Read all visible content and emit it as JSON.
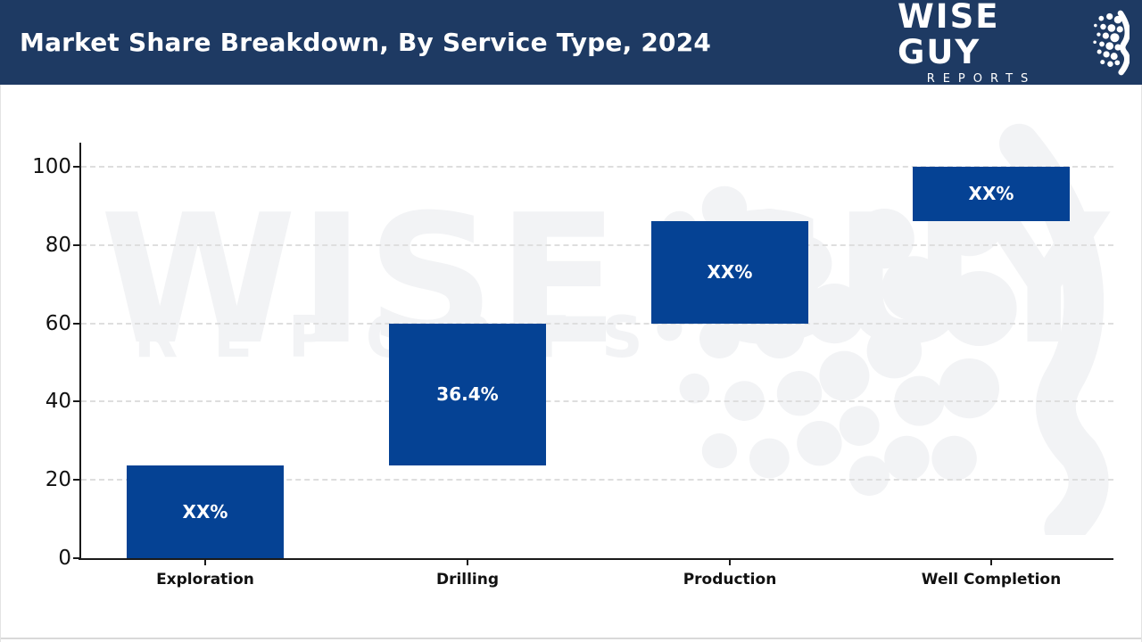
{
  "header": {
    "title": "Market Share Breakdown, By Service Type, 2024",
    "logo": {
      "line1": "WISE GUY",
      "line2": "REPORTS"
    }
  },
  "watermark": {
    "line1": "WISE GUY",
    "line2": "REPORTS"
  },
  "colors": {
    "header_bg": "#1e3a63",
    "bar": "#054294",
    "grid": "#dedede",
    "axis": "#1a1a1a",
    "watermark": "#f2f3f5",
    "title_text": "#ffffff"
  },
  "chart_data": {
    "type": "bar",
    "variant": "waterfall",
    "title": "Market Share Breakdown, By Service Type, 2024",
    "categories": [
      "Exploration",
      "Drilling",
      "Production",
      "Well Completion"
    ],
    "segments": [
      {
        "category": "Exploration",
        "start": 0,
        "end": 23.6,
        "label": "XX%"
      },
      {
        "category": "Drilling",
        "start": 23.6,
        "end": 60,
        "label": "36.4%"
      },
      {
        "category": "Production",
        "start": 60,
        "end": 86.2,
        "label": "XX%"
      },
      {
        "category": "Well Completion",
        "start": 86.2,
        "end": 100,
        "label": "XX%"
      }
    ],
    "ylim": [
      0,
      100
    ],
    "yticks": [
      0,
      20,
      40,
      60,
      80,
      100
    ],
    "ytick_labels": [
      "0",
      "20",
      "40",
      "60",
      "80",
      "100"
    ],
    "bar_color": "#054294",
    "grid": {
      "horizontal": true,
      "style": "dashed",
      "color": "#dedede"
    },
    "legend": "none",
    "xlabel": "",
    "ylabel": ""
  }
}
